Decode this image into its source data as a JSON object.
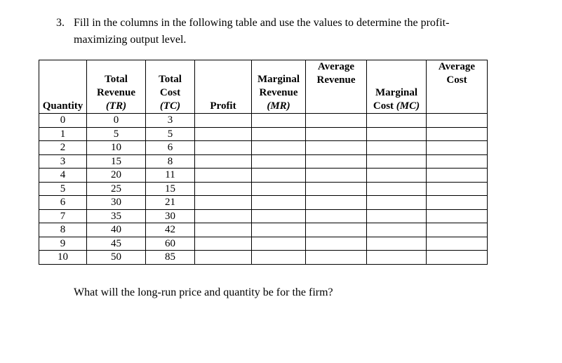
{
  "page": {
    "background": "#ffffff",
    "text_color": "#000000",
    "border_color": "#000000"
  },
  "problem": {
    "number": "3.",
    "text_line1": "Fill in the columns in the following table and use the values to determine the profit-",
    "text_line2": "maximizing output level."
  },
  "followup_question": "What will the long-run price and quantity be for the firm?",
  "table": {
    "headers": {
      "quantity": "Quantity",
      "total_revenue": {
        "line1": "Total",
        "line2": "Revenue",
        "abbr": "(TR)"
      },
      "total_cost": {
        "line1": "Total",
        "line2": "Cost",
        "abbr": "(TC)"
      },
      "profit": "Profit",
      "marginal_revenue": {
        "line1": "Marginal",
        "line2": "Revenue",
        "abbr": "(MR)"
      },
      "average_revenue": {
        "line1": "Average",
        "line2": "Revenue"
      },
      "marginal_cost": {
        "line1": "Marginal",
        "line2": "Cost",
        "abbr": "(MC)"
      },
      "average_cost": {
        "line1": "Average",
        "line2": "Cost"
      }
    },
    "column_order": [
      "quantity",
      "total_revenue",
      "total_cost",
      "profit",
      "marginal_revenue",
      "average_revenue",
      "marginal_cost",
      "average_cost"
    ],
    "rows": [
      {
        "quantity": "0",
        "total_revenue": "0",
        "total_cost": "3",
        "profit": "",
        "marginal_revenue": "",
        "average_revenue": "",
        "marginal_cost": "",
        "average_cost": ""
      },
      {
        "quantity": "1",
        "total_revenue": "5",
        "total_cost": "5",
        "profit": "",
        "marginal_revenue": "",
        "average_revenue": "",
        "marginal_cost": "",
        "average_cost": ""
      },
      {
        "quantity": "2",
        "total_revenue": "10",
        "total_cost": "6",
        "profit": "",
        "marginal_revenue": "",
        "average_revenue": "",
        "marginal_cost": "",
        "average_cost": ""
      },
      {
        "quantity": "3",
        "total_revenue": "15",
        "total_cost": "8",
        "profit": "",
        "marginal_revenue": "",
        "average_revenue": "",
        "marginal_cost": "",
        "average_cost": ""
      },
      {
        "quantity": "4",
        "total_revenue": "20",
        "total_cost": "11",
        "profit": "",
        "marginal_revenue": "",
        "average_revenue": "",
        "marginal_cost": "",
        "average_cost": ""
      },
      {
        "quantity": "5",
        "total_revenue": "25",
        "total_cost": "15",
        "profit": "",
        "marginal_revenue": "",
        "average_revenue": "",
        "marginal_cost": "",
        "average_cost": ""
      },
      {
        "quantity": "6",
        "total_revenue": "30",
        "total_cost": "21",
        "profit": "",
        "marginal_revenue": "",
        "average_revenue": "",
        "marginal_cost": "",
        "average_cost": ""
      },
      {
        "quantity": "7",
        "total_revenue": "35",
        "total_cost": "30",
        "profit": "",
        "marginal_revenue": "",
        "average_revenue": "",
        "marginal_cost": "",
        "average_cost": ""
      },
      {
        "quantity": "8",
        "total_revenue": "40",
        "total_cost": "42",
        "profit": "",
        "marginal_revenue": "",
        "average_revenue": "",
        "marginal_cost": "",
        "average_cost": ""
      },
      {
        "quantity": "9",
        "total_revenue": "45",
        "total_cost": "60",
        "profit": "",
        "marginal_revenue": "",
        "average_revenue": "",
        "marginal_cost": "",
        "average_cost": ""
      },
      {
        "quantity": "10",
        "total_revenue": "50",
        "total_cost": "85",
        "profit": "",
        "marginal_revenue": "",
        "average_revenue": "",
        "marginal_cost": "",
        "average_cost": ""
      }
    ]
  }
}
